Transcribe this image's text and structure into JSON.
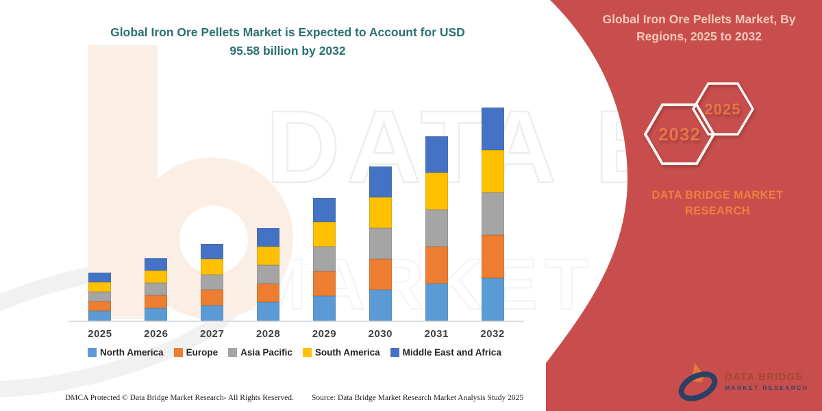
{
  "chart": {
    "title_line1": "Global Iron Ore Pellets Market is Expected to Account for USD",
    "title_line2": "95.58 billion by 2032"
  },
  "chart_data": {
    "type": "bar",
    "stacked": true,
    "title": "Global Iron Ore Pellets Market is Expected to Account for USD 95.58 billion by 2032",
    "unit": "USD billion",
    "values_estimated": true,
    "categories": [
      "2025",
      "2026",
      "2027",
      "2028",
      "2029",
      "2030",
      "2031",
      "2032"
    ],
    "series": [
      {
        "name": "North America",
        "color": "#5B9BD5",
        "values": [
          4.3,
          5.6,
          6.9,
          8.3,
          11.0,
          13.8,
          16.5,
          19.1
        ]
      },
      {
        "name": "Europe",
        "color": "#ED7D31",
        "values": [
          4.3,
          5.6,
          6.9,
          8.3,
          11.0,
          13.8,
          16.5,
          19.1
        ]
      },
      {
        "name": "Asia Pacific",
        "color": "#A5A5A5",
        "values": [
          4.3,
          5.6,
          6.9,
          8.3,
          11.0,
          13.8,
          16.5,
          19.1
        ]
      },
      {
        "name": "South America",
        "color": "#FFC000",
        "values": [
          4.3,
          5.6,
          6.9,
          8.3,
          11.0,
          13.8,
          16.5,
          19.1
        ]
      },
      {
        "name": "Middle East and Africa",
        "color": "#4472C4",
        "values": [
          4.3,
          5.6,
          6.9,
          8.3,
          11.0,
          13.8,
          16.5,
          19.1
        ]
      }
    ],
    "totals_estimated": [
      21.5,
      28.0,
      34.5,
      41.5,
      55.0,
      69.0,
      82.5,
      95.58
    ],
    "ylim": [
      0,
      95.58
    ],
    "y_axis_labels_visible": false,
    "gridlines": false,
    "legend_position": "bottom"
  },
  "side_panel": {
    "background_color": "#C84E4D",
    "title": "Global Iron Ore Pellets Market, By Regions, 2025 to 2032",
    "hexagon_year_left": "2032",
    "hexagon_year_right": "2025",
    "brand_text": "DATA BRIDGE MARKET RESEARCH",
    "accent_text_color": "#EE7F3F"
  },
  "logo": {
    "title": "DATA BRIDGE",
    "subtitle": "MARKET RESEARCH"
  },
  "watermark": {
    "row1": "DATA BRI",
    "row2": "MARKET"
  },
  "footer": {
    "left": "DMCA Protected © Data Bridge Market Research- All Rights Reserved.",
    "source": "Source: Data Bridge Market Research Market Analysis Study 2025"
  }
}
